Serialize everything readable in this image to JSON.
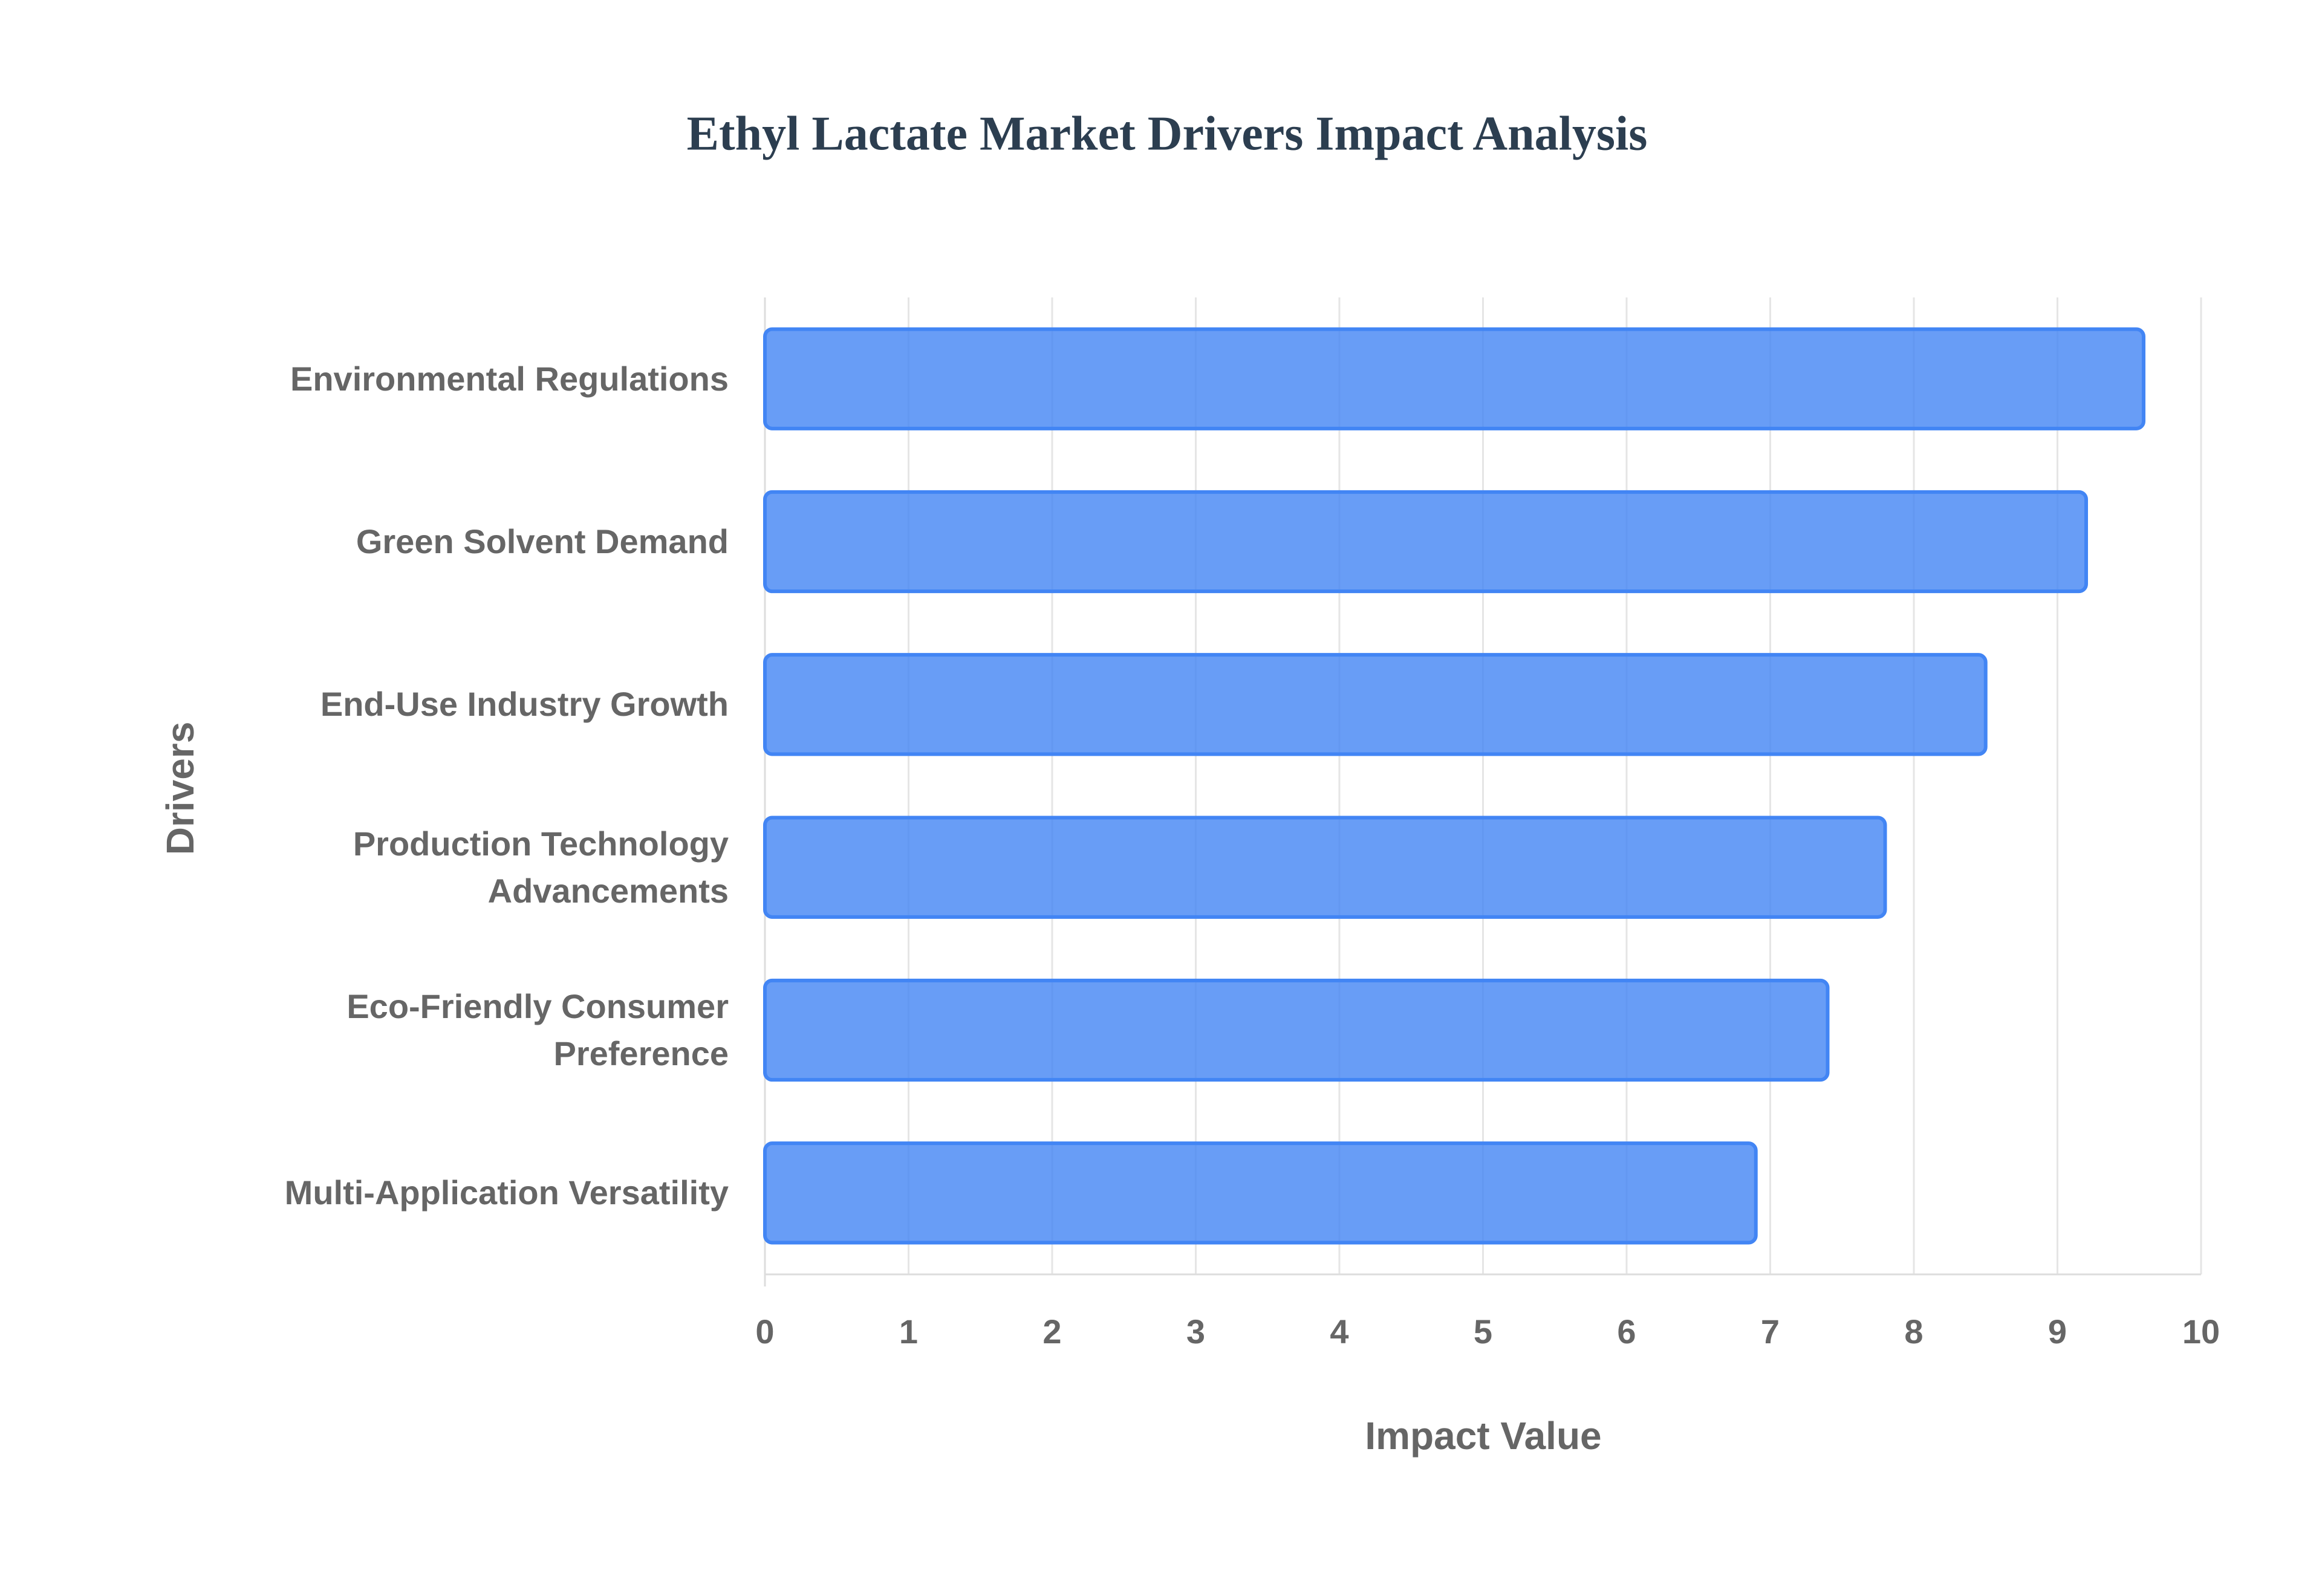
{
  "chart_data": {
    "type": "bar",
    "orientation": "horizontal",
    "title": "Ethyl Lactate Market Drivers Impact Analysis",
    "x_label": "Impact Value",
    "y_label": "Drivers",
    "categories": [
      "Environmental Regulations",
      "Green Solvent Demand",
      "End-Use Industry Growth",
      "Production Technology Advancements",
      "Eco-Friendly Consumer Preference",
      "Multi-Application Versatility"
    ],
    "values": [
      9.6,
      9.2,
      8.5,
      7.8,
      7.4,
      6.9
    ],
    "color": "#4285f4",
    "xlim": [
      0,
      10
    ],
    "xticks": [
      0,
      1,
      2,
      3,
      4,
      5,
      6,
      7,
      8,
      9,
      10
    ],
    "grid": true
  }
}
